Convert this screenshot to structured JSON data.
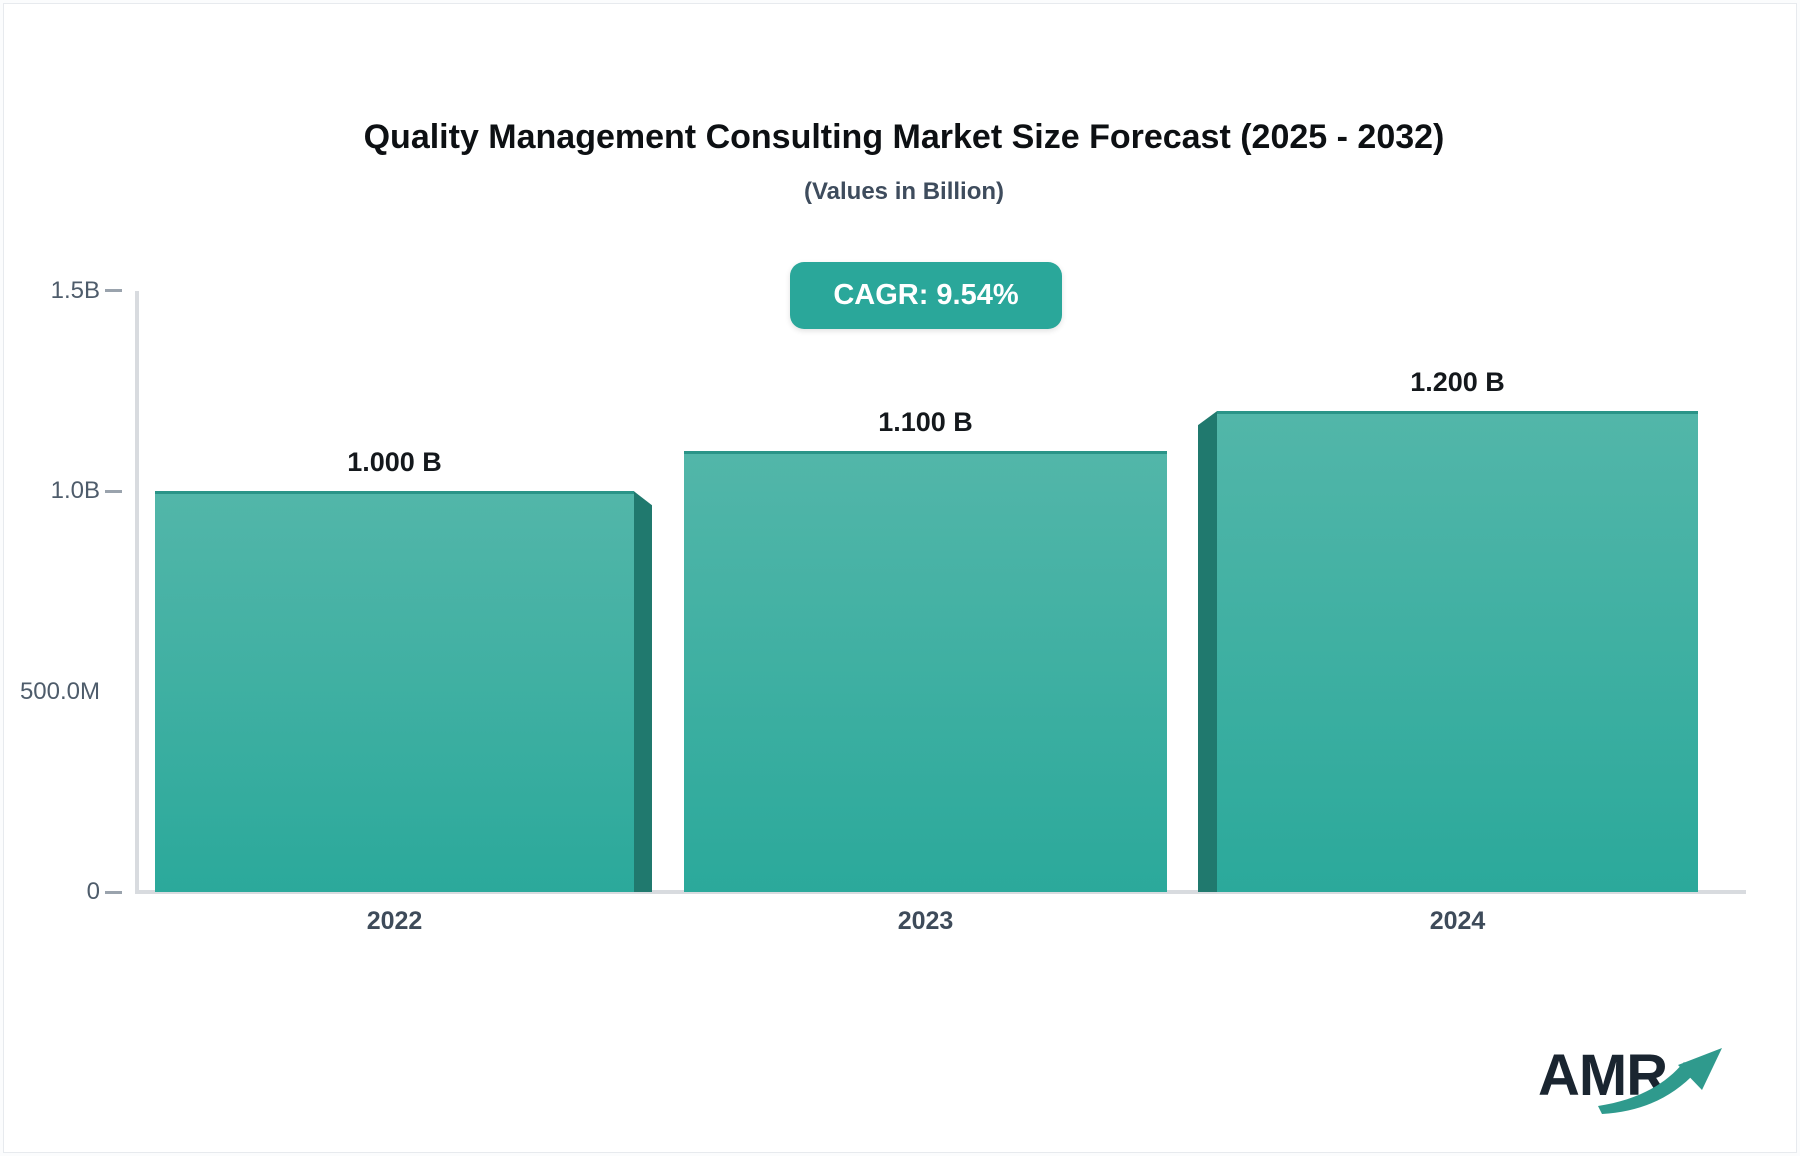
{
  "page": {
    "title": "Quality Management Consulting Market Size Forecast (2025 - 2032)",
    "subtitle": "(Values in Billion)",
    "cagr_label": "CAGR: 9.54%",
    "logo": {
      "text": "AMR"
    }
  },
  "colors": {
    "title_text": "#0d1013",
    "subtitle_text": "#3e4c5d",
    "badge_bg": "#2aa79a",
    "axis_line": "#d8dbdf",
    "tick": "#9aa3ad",
    "axis_label": "#4e5c6b",
    "year_label": "#3e4b5a",
    "bar_gradient_top": "#52b6a9",
    "bar_gradient_bottom": "#2ba99b",
    "bar_top_edge": "#2a9488",
    "bar_depth": "#20796e",
    "logo_text": "#1a2530",
    "logo_arrow": "#2f9a8d"
  },
  "chart_data": {
    "type": "bar",
    "title": "Quality Management Consulting Market Size Forecast (2025 - 2032)",
    "subtitle": "(Values in Billion)",
    "values_in": "Billion",
    "cagr": "9.54%",
    "categories": [
      "2022",
      "2023",
      "2024"
    ],
    "values": [
      1.0,
      1.1,
      1.2
    ],
    "value_labels": [
      "1.000 B",
      "1.100 B",
      "1.200 B"
    ],
    "ylim": [
      0,
      1.5
    ],
    "yticks": [
      {
        "label": "1.5B",
        "value": 1.5,
        "dash": true
      },
      {
        "label": "1.0B",
        "value": 1.0,
        "dash": true
      },
      {
        "label": "500.0M",
        "value": 0.5,
        "dash": false
      },
      {
        "label": "0",
        "value": 0.0,
        "dash": true
      }
    ],
    "grid": false,
    "legend": "none",
    "bar_style": "pseudo-3d teal gradient"
  }
}
